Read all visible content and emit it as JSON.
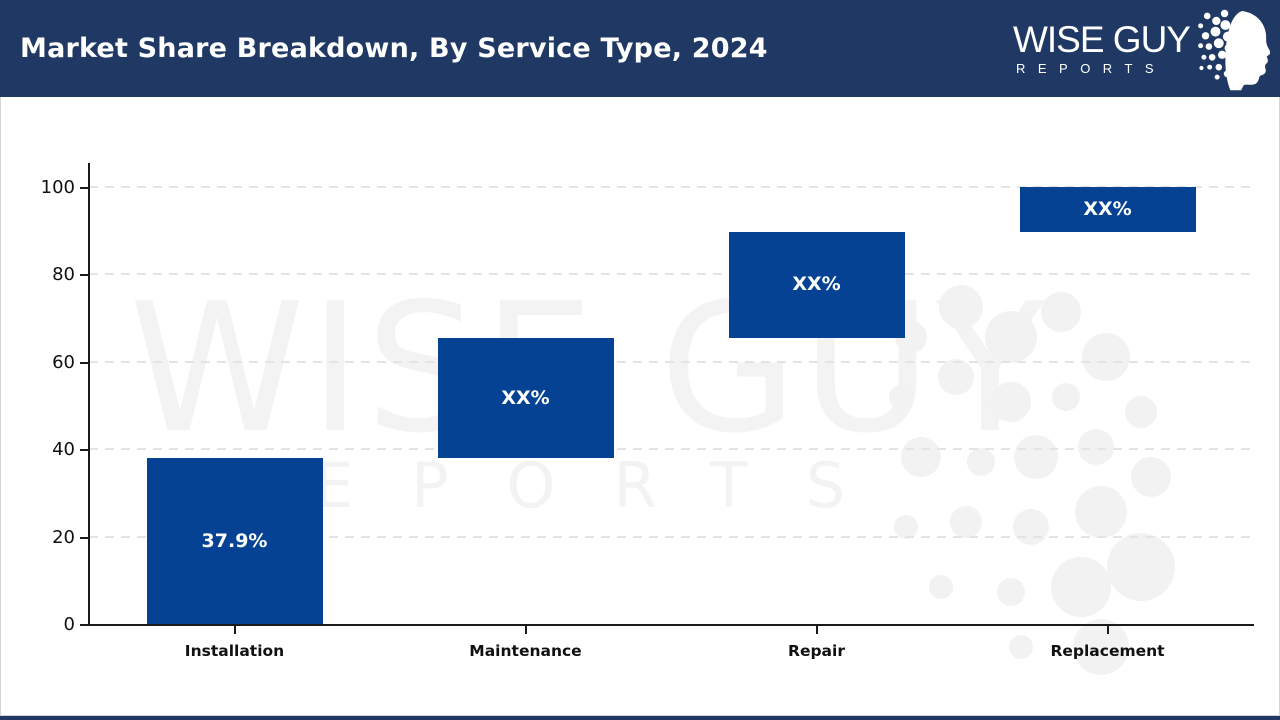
{
  "header": {
    "title": "Market Share Breakdown, By Service Type, 2024",
    "logo": {
      "line1": "WISE GUY",
      "line2": "REPORTS"
    }
  },
  "watermark": {
    "line1": "WISE GUY",
    "line2": "REPORTS"
  },
  "colors": {
    "header_bg": "#203864",
    "bar_blue": "#054294",
    "grid": "#e4e4e4",
    "axis": "#1a1a1a",
    "watermark": "#f3f3f3"
  },
  "chart_data": {
    "type": "bar",
    "subtype": "waterfall",
    "title": "Market Share Breakdown, By Service Type, 2024",
    "categories": [
      "Installation",
      "Maintenance",
      "Repair",
      "Replacement"
    ],
    "segments": [
      {
        "category": "Installation",
        "start": 0,
        "end": 37.9,
        "value": 37.9,
        "label": "37.9%"
      },
      {
        "category": "Maintenance",
        "start": 37.9,
        "end": 65.5,
        "value": 27.6,
        "label": "XX%"
      },
      {
        "category": "Repair",
        "start": 65.5,
        "end": 89.8,
        "value": 24.3,
        "label": "XX%"
      },
      {
        "category": "Replacement",
        "start": 89.8,
        "end": 100,
        "value": 10.2,
        "label": "XX%"
      }
    ],
    "yticks": [
      0,
      20,
      40,
      60,
      80,
      100
    ],
    "ylim": [
      0,
      105.5
    ],
    "xlabel": "",
    "ylabel": "",
    "grid": "horizontal-dashed",
    "legend": "none",
    "bar_color": "#054294",
    "bar_label_color": "#ffffff"
  }
}
